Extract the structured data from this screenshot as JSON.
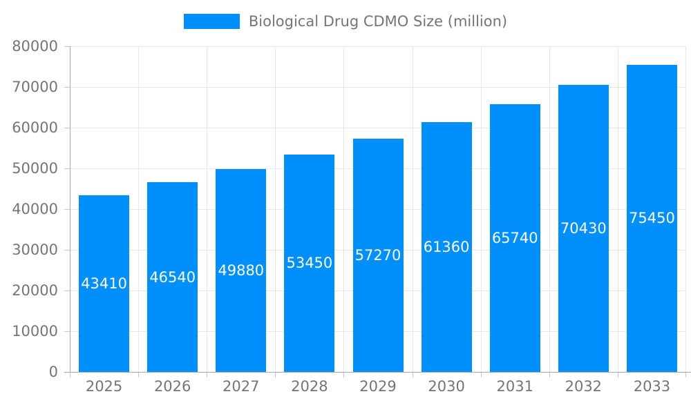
{
  "legend": {
    "label": "Biological Drug CDMO Size (million)"
  },
  "colors": {
    "bar": "#008FFB",
    "value_label": "#ffffff",
    "text": "#757575",
    "grid_line": "#e7e7e7",
    "tick_line": "#c6c6c6",
    "axis_line": "#a8a8a8"
  },
  "chart_data": {
    "type": "bar",
    "title": "Biological Drug CDMO Size (million)",
    "categories": [
      "2025",
      "2026",
      "2027",
      "2028",
      "2029",
      "2030",
      "2031",
      "2032",
      "2033"
    ],
    "values": [
      43410,
      46540,
      49880,
      53450,
      57270,
      61360,
      65740,
      70430,
      75450
    ],
    "series": [
      {
        "name": "Biological Drug CDMO Size (million)",
        "values": [
          43410,
          46540,
          49880,
          53450,
          57270,
          61360,
          65740,
          70430,
          75450
        ]
      }
    ],
    "xlabel": "",
    "ylabel": "",
    "ylim": [
      0,
      80000
    ],
    "yticks": [
      0,
      10000,
      20000,
      30000,
      40000,
      50000,
      60000,
      70000,
      80000
    ],
    "grid": true,
    "legend_position": "top",
    "value_labels": "inside-center"
  }
}
